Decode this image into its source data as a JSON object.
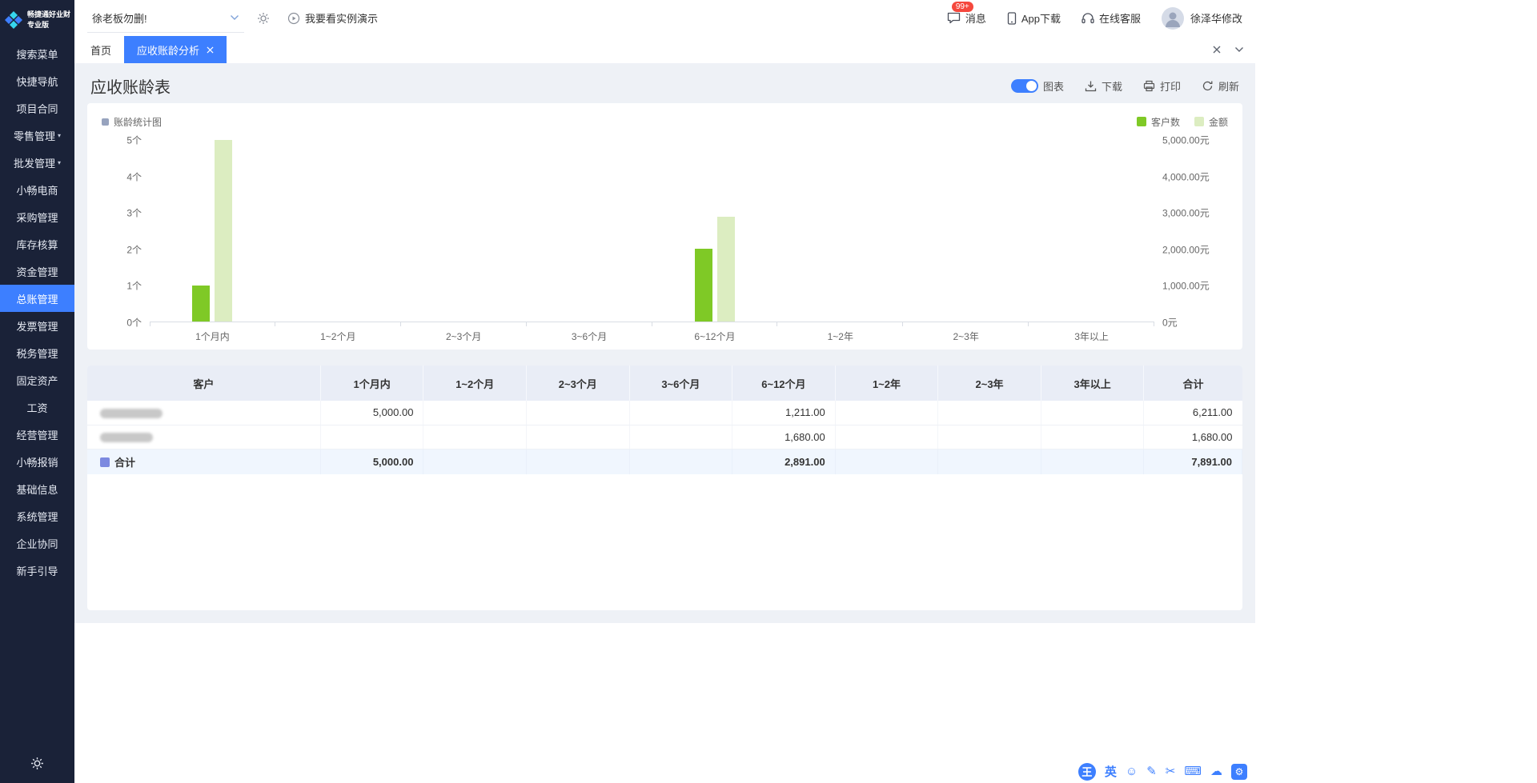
{
  "colors": {
    "accent": "#3D7FFF",
    "sidebar_bg": "#1A2238",
    "content_bg": "#EEF1F6",
    "badge_red": "#F5483D",
    "customer_bar_green": "#7FC926",
    "amount_bar_green": "#DCEDC1"
  },
  "sidebar": {
    "logo_line1": "畅捷通好业财",
    "logo_line2": "专业版",
    "items": [
      {
        "label": "搜索菜单"
      },
      {
        "label": "快捷导航"
      },
      {
        "label": "项目合同"
      },
      {
        "label": "零售管理",
        "expandable": true
      },
      {
        "label": "批发管理",
        "expandable": true
      },
      {
        "label": "小畅电商"
      },
      {
        "label": "采购管理"
      },
      {
        "label": "库存核算"
      },
      {
        "label": "资金管理"
      },
      {
        "label": "总账管理",
        "active": true
      },
      {
        "label": "发票管理"
      },
      {
        "label": "税务管理"
      },
      {
        "label": "固定资产"
      },
      {
        "label": "工资"
      },
      {
        "label": "经营管理"
      },
      {
        "label": "小畅报销"
      },
      {
        "label": "基础信息"
      },
      {
        "label": "系统管理"
      },
      {
        "label": "企业协同"
      },
      {
        "label": "新手引导"
      }
    ]
  },
  "topbar": {
    "company_selector": "徐老板勿删!",
    "demo_text": "我要看实例演示",
    "messages_label": "消息",
    "messages_badge": "99+",
    "app_download_label": "App下载",
    "online_service_label": "在线客服",
    "username": "徐泽华修改"
  },
  "tabbar": {
    "tabs": [
      {
        "label": "首页",
        "active": false,
        "closable": false
      },
      {
        "label": "应收账龄分析",
        "active": true,
        "closable": true
      }
    ]
  },
  "page": {
    "title": "应收账龄表",
    "toggle_label": "图表",
    "toggle_on": true,
    "download_label": "下载",
    "print_label": "打印",
    "refresh_label": "刷新"
  },
  "chart_data": {
    "type": "bar",
    "title": "账龄统计图",
    "categories": [
      "1个月内",
      "1~2个月",
      "2~3个月",
      "3~6个月",
      "6~12个月",
      "1~2年",
      "2~3年",
      "3年以上"
    ],
    "series": [
      {
        "name": "客户数",
        "axis": "left",
        "color": "#7FC926",
        "values": [
          1,
          0,
          0,
          0,
          2,
          0,
          0,
          0
        ]
      },
      {
        "name": "金额",
        "axis": "right",
        "color": "#DCEDC1",
        "values": [
          5000,
          0,
          0,
          0,
          2891,
          0,
          0,
          0
        ]
      }
    ],
    "left_axis": {
      "ticks": [
        "5个",
        "4个",
        "3个",
        "2个",
        "1个",
        "0个"
      ],
      "max": 5,
      "min": 0
    },
    "right_axis": {
      "ticks": [
        "5,000.00元",
        "4,000.00元",
        "3,000.00元",
        "2,000.00元",
        "1,000.00元",
        "0元"
      ],
      "max": 5000,
      "min": 0
    },
    "legend_position": "top-right",
    "grid": false
  },
  "table": {
    "headers": [
      "客户",
      "1个月内",
      "1~2个月",
      "2~3个月",
      "3~6个月",
      "6~12个月",
      "1~2年",
      "2~3年",
      "3年以上",
      "合计"
    ],
    "rows": [
      {
        "customer_masked": true,
        "mask_width": 78,
        "values": [
          "5,000.00",
          "",
          "",
          "",
          "1,211.00",
          "",
          "",
          "",
          "6,211.00"
        ]
      },
      {
        "customer_masked": true,
        "mask_width": 66,
        "values": [
          "",
          "",
          "",
          "",
          "1,680.00",
          "",
          "",
          "",
          "1,680.00"
        ]
      }
    ],
    "total": {
      "label": "合计",
      "values": [
        "5,000.00",
        "",
        "",
        "",
        "2,891.00",
        "",
        "",
        "",
        "7,891.00"
      ]
    }
  },
  "ime": {
    "logo": "王",
    "lang": "英",
    "tools": [
      {
        "name": "emoji-icon",
        "glyph": "☺"
      },
      {
        "name": "pen-icon",
        "glyph": "✎"
      },
      {
        "name": "scissors-icon",
        "glyph": "✂"
      },
      {
        "name": "keyboard-icon",
        "glyph": "⌨"
      },
      {
        "name": "cloud-icon",
        "glyph": "☁"
      },
      {
        "name": "toolbox-icon",
        "glyph": "⚙"
      }
    ]
  }
}
